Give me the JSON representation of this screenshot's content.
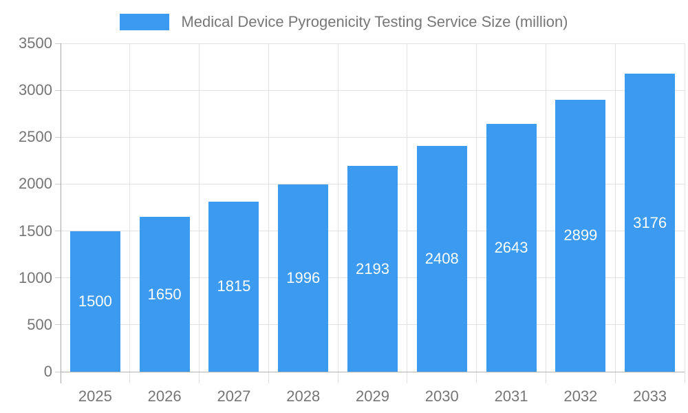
{
  "legend": {
    "label": "Medical Device Pyrogenicity Testing Service Size (million)",
    "swatch_color": "#3d9af1"
  },
  "chart_data": {
    "type": "bar",
    "title": "Medical Device Pyrogenicity Testing Service Size (million)",
    "categories": [
      "2025",
      "2026",
      "2027",
      "2028",
      "2029",
      "2030",
      "2031",
      "2032",
      "2033"
    ],
    "values": [
      1500,
      1650,
      1815,
      1996,
      2193,
      2408,
      2643,
      2899,
      3176
    ],
    "xlabel": "",
    "ylabel": "",
    "ylim": [
      0,
      3500
    ],
    "yticks": [
      0,
      500,
      1000,
      1500,
      2000,
      2500,
      3000,
      3500
    ],
    "grid": true,
    "legend_position": "top",
    "bar_color": "#3d9af1",
    "bar_label_color": "#ffffff",
    "axis_label_color": "#757575",
    "gridline_color": "#e2e2e2",
    "background_color": "#ffffff"
  }
}
